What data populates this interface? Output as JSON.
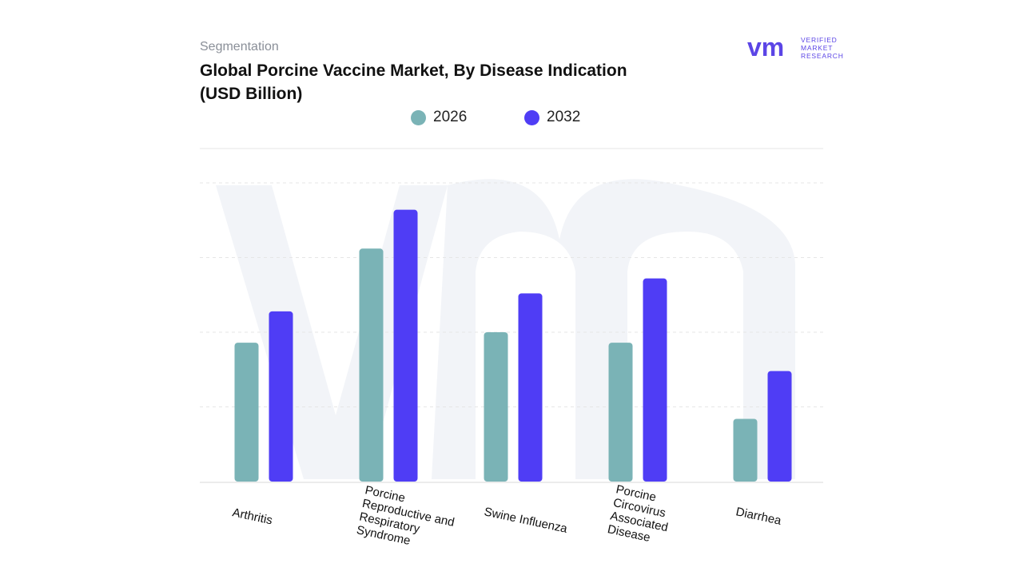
{
  "header": {
    "segment_label": "Segmentation",
    "title": "Global Porcine Vaccine Market, By Disease Indication (USD Billion)"
  },
  "logo": {
    "mark": "vm",
    "line1": "VERIFIED",
    "line2": "MARKET",
    "line3": "RESEARCH",
    "color": "#5b45e6"
  },
  "colors": {
    "s2026": "#7ab3b6",
    "s2032": "#4f3df5",
    "grid": "#e6e6e6",
    "watermark": "#eef0f6"
  },
  "chart_data": {
    "type": "bar",
    "categories": [
      "Arthritis",
      "Porcine Reproductive and Respiratory Syndrome",
      "Swine Influenza",
      "Porcine Circovirus Associated Disease",
      "Diarrhea"
    ],
    "series": [
      {
        "name": "2026",
        "values": [
          0.93,
          1.56,
          1.0,
          0.93,
          0.42
        ]
      },
      {
        "name": "2032",
        "values": [
          1.14,
          1.82,
          1.26,
          1.36,
          0.74
        ]
      }
    ],
    "ylim": [
      0,
      2.0
    ],
    "grid": true,
    "legend": "top-center"
  }
}
